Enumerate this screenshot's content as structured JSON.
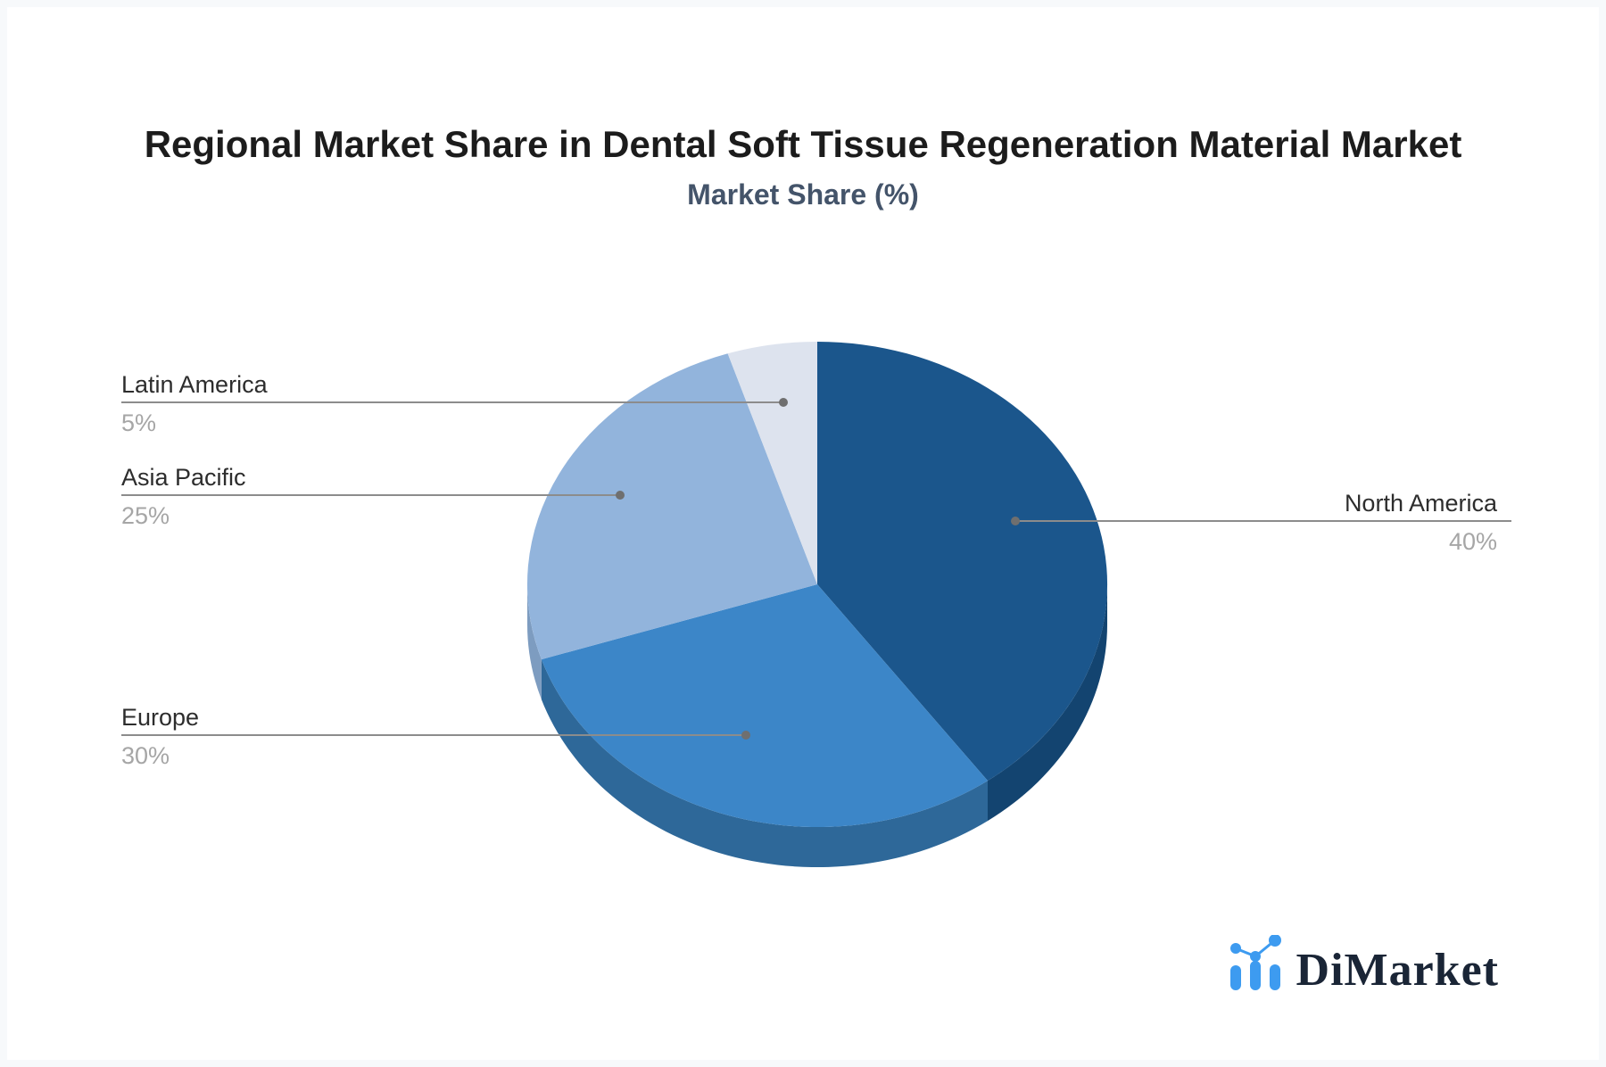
{
  "title": "Regional Market Share in Dental Soft Tissue Regeneration Material Market",
  "subtitle": "Market Share (%)",
  "theme": {
    "background": "#f7f9fb",
    "card_background": "#ffffff",
    "title_color": "#1c1c1c",
    "subtitle_color": "#44546a",
    "leader_line_color": "#8c8c8c",
    "leader_dot_color": "#6f6f6f",
    "label_color": "#2d2d2d",
    "value_color": "#a6a6a6"
  },
  "chart_data": {
    "type": "pie",
    "title": "Regional Market Share in Dental Soft Tissue Regeneration Material Market",
    "subtitle": "Market Share (%)",
    "unit": "%",
    "effect": "3d",
    "start_angle_deg": 0,
    "direction": "clockwise",
    "legend": "none",
    "labels": [
      "North America",
      "Europe",
      "Asia Pacific",
      "Latin America"
    ],
    "values": [
      40,
      30,
      25,
      5
    ],
    "display_values": [
      "40%",
      "30%",
      "25%",
      "5%"
    ],
    "colors": [
      "#1b568c",
      "#3c86c8",
      "#92b4dc",
      "#dde3ee"
    ],
    "side_colors": [
      "#134470",
      "#2e6899",
      "#7d9cc0",
      "#c9d4e4"
    ]
  },
  "brand": {
    "name": "DiMarket",
    "icon": "bar-line-chart-icon",
    "icon_color": "#3d9bf0",
    "text_color": "#1a2536"
  }
}
